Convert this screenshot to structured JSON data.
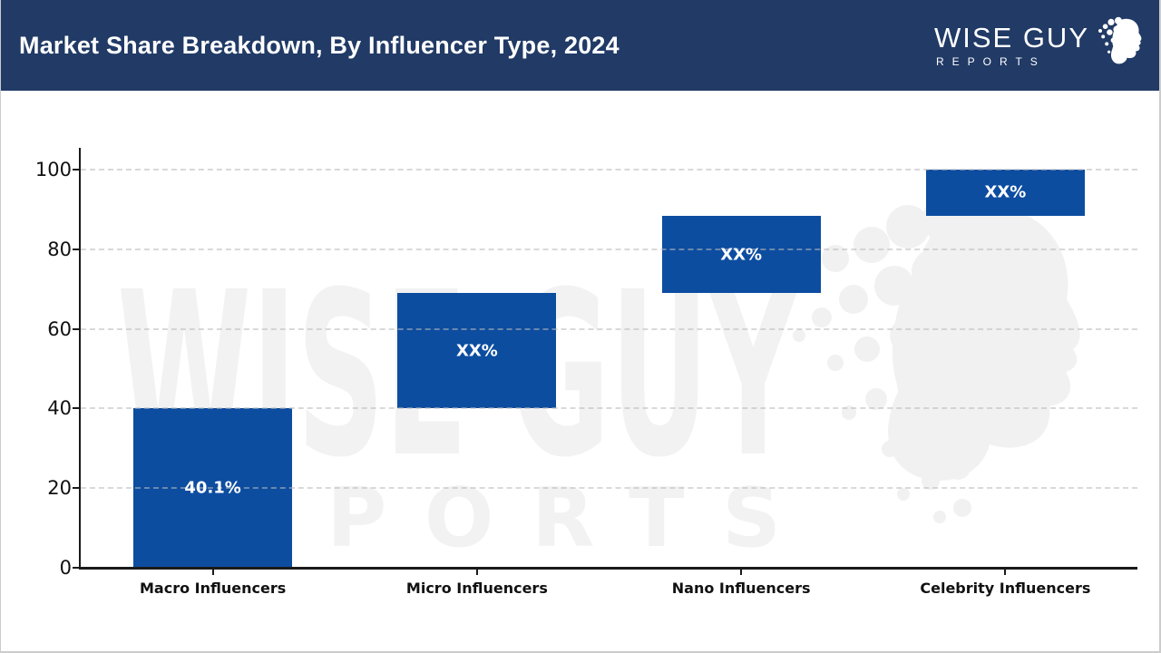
{
  "header": {
    "title": "Market Share Breakdown, By Influencer Type, 2024",
    "brand_line1": "WISE GUY",
    "brand_line2": "REPORTS"
  },
  "watermark": {
    "line1": "WISE GUY",
    "line2": "REPORTS"
  },
  "colors": {
    "header_bg": "#213a66",
    "bar": "#0c4da0",
    "bar_label": "#ffffff",
    "watermark": "#f2f2f2"
  },
  "chart_data": {
    "type": "bar",
    "subtype": "waterfall",
    "title": "Market Share Breakdown, By Influencer Type, 2024",
    "categories": [
      "Macro Influencers",
      "Micro Influencers",
      "Nano Influencers",
      "Celebrity Influencers"
    ],
    "segments": [
      {
        "category": "Macro Influencers",
        "start": 0,
        "end": 40.1,
        "label": "40.1%"
      },
      {
        "category": "Micro Influencers",
        "start": 40.1,
        "end": 69,
        "label": "XX%"
      },
      {
        "category": "Nano Influencers",
        "start": 69,
        "end": 88.4,
        "label": "XX%"
      },
      {
        "category": "Celebrity Influencers",
        "start": 88.4,
        "end": 100,
        "label": "XX%"
      }
    ],
    "ylim": [
      0,
      100
    ],
    "yticks": [
      0,
      20,
      40,
      60,
      80,
      100
    ],
    "xlabel": "",
    "ylabel": "",
    "grid": "horizontal-dashed",
    "legend": "none"
  }
}
